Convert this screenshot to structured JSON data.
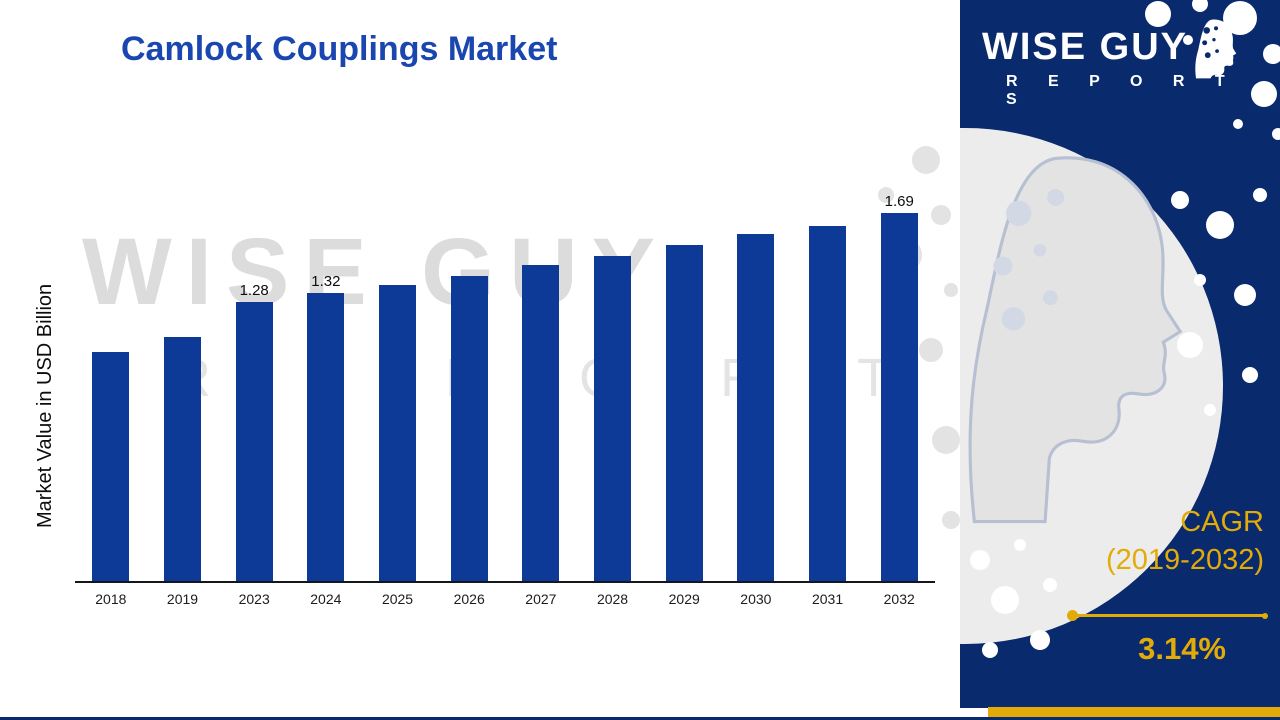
{
  "title": "Camlock Couplings Market",
  "ylabel": "Market Value in USD Billion",
  "watermark": {
    "line1": "WISE GUY",
    "line2": "R E P O R T S"
  },
  "logo": {
    "line1": "WISE GUY",
    "line2": "R E P O R T S"
  },
  "cagr": {
    "label": "CAGR",
    "range": "(2019-2032)",
    "value": "3.14%"
  },
  "colors": {
    "bar": "#0d3a96",
    "panel": "#0a2a6e",
    "accent": "#e2ab07",
    "title": "#1a46b0"
  },
  "chart_data": {
    "type": "bar",
    "title": "Camlock Couplings Market",
    "xlabel": "",
    "ylabel": "Market Value in USD Billion",
    "categories": [
      "2018",
      "2019",
      "2023",
      "2024",
      "2025",
      "2026",
      "2027",
      "2028",
      "2029",
      "2030",
      "2031",
      "2032"
    ],
    "values": [
      1.05,
      1.12,
      1.28,
      1.32,
      1.36,
      1.4,
      1.45,
      1.49,
      1.54,
      1.59,
      1.63,
      1.69
    ],
    "bar_labels": {
      "2023": "1.28",
      "2024": "1.32",
      "2032": "1.69"
    },
    "ylim": [
      0,
      1.8
    ],
    "grid": false,
    "legend": "none",
    "bar_color": "#0d3a96"
  }
}
